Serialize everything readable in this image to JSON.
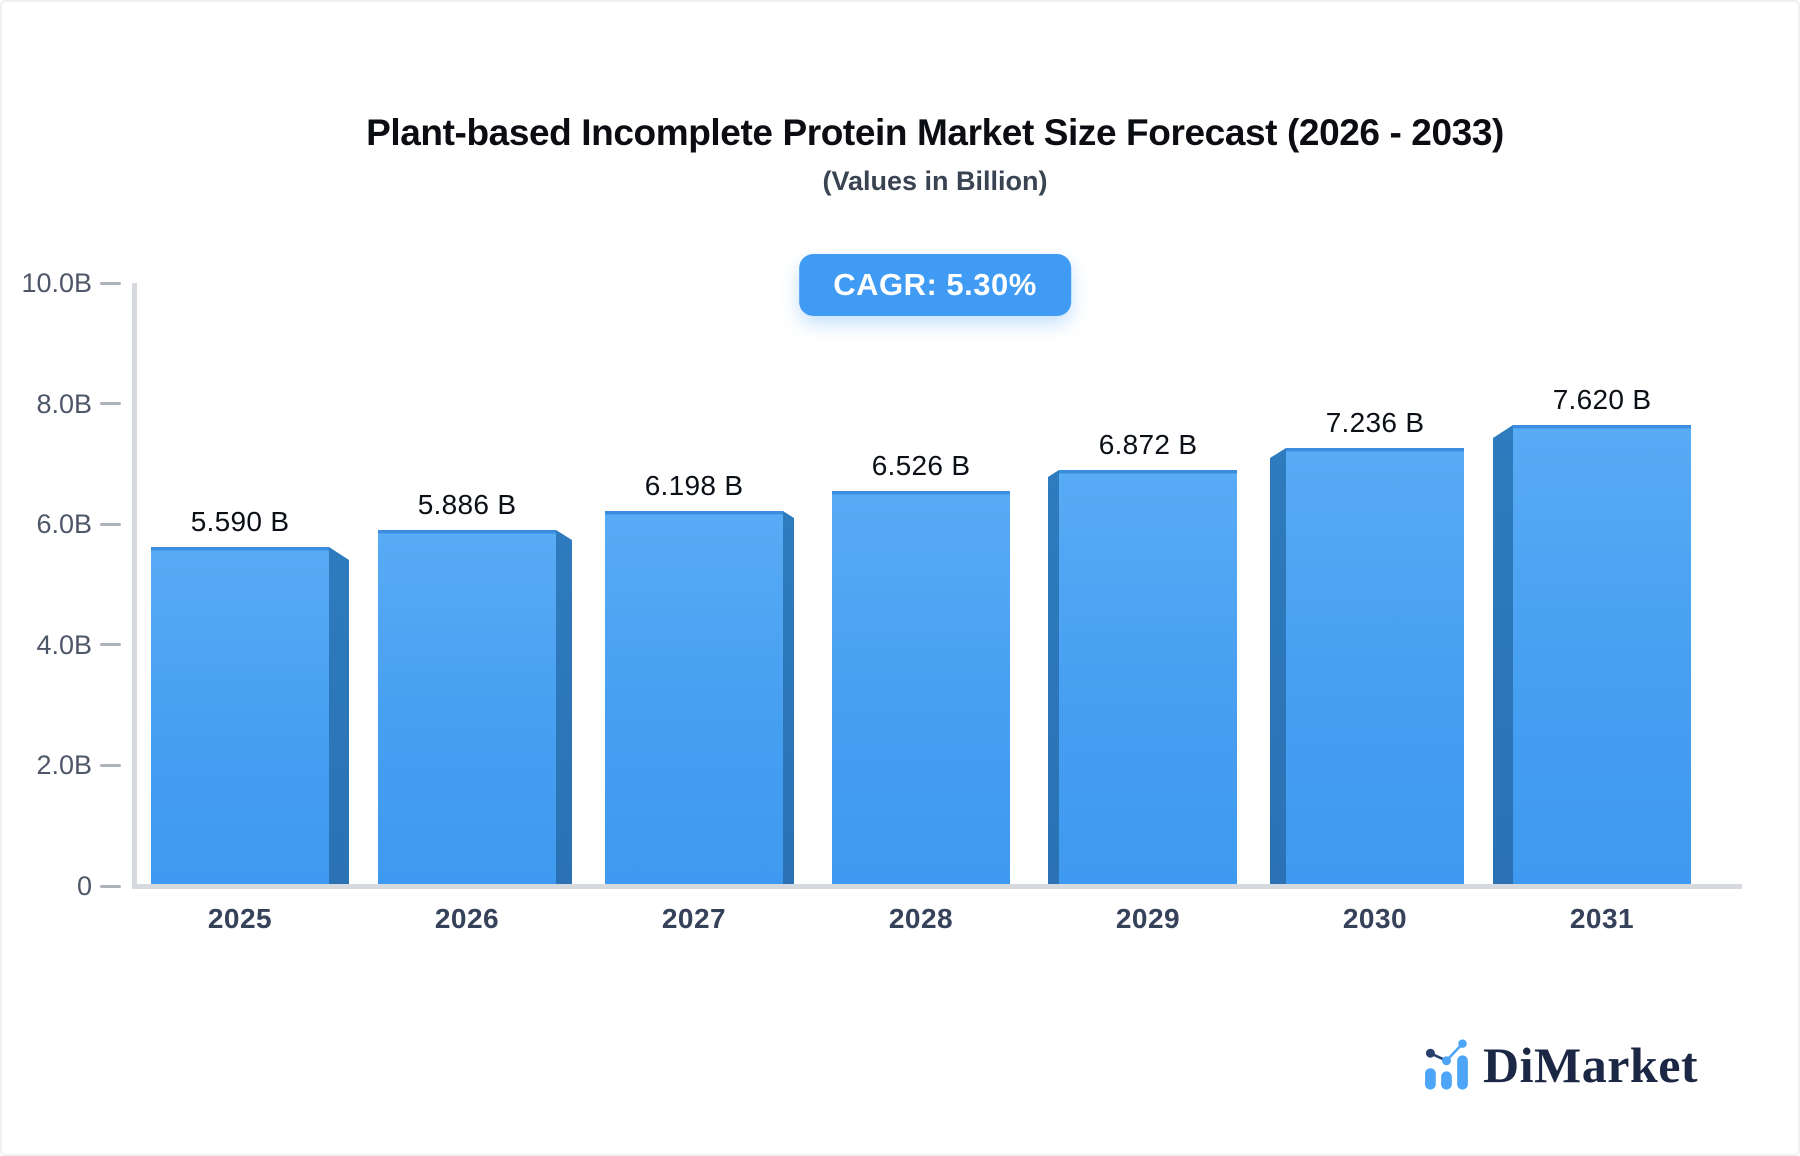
{
  "header": {
    "title": "Plant-based Incomplete Protein Market Size Forecast (2026 - 2033)",
    "subtitle": "(Values in Billion)"
  },
  "badge": {
    "label": "CAGR: 5.30%"
  },
  "chart_data": {
    "type": "bar",
    "categories": [
      "2025",
      "2026",
      "2027",
      "2028",
      "2029",
      "2030",
      "2031"
    ],
    "values": [
      5.59,
      5.886,
      6.198,
      6.526,
      6.872,
      7.236,
      7.62
    ],
    "value_labels": [
      "5.590 B",
      "5.886 B",
      "6.198 B",
      "6.526 B",
      "6.872 B",
      "7.236 B",
      "7.620 B"
    ],
    "title": "Plant-based Incomplete Protein Market Size Forecast (2026 - 2033)",
    "subtitle": "(Values in Billion)",
    "unit": "Billion",
    "xlabel": "",
    "ylabel": "",
    "ylim": [
      0,
      10
    ],
    "yticks": [
      {
        "value": 10,
        "label": "10.0B"
      },
      {
        "value": 8,
        "label": "8.0B"
      },
      {
        "value": 6,
        "label": "6.0B"
      },
      {
        "value": 4,
        "label": "4.0B"
      },
      {
        "value": 2,
        "label": "2.0B"
      },
      {
        "value": 0,
        "label": "0"
      }
    ],
    "grid": "off",
    "legend": "none",
    "bar_style": "3d-perspective"
  },
  "logo": {
    "text": "DiMarket",
    "icon": "bar-chart-logo-icon"
  },
  "colors": {
    "badge_bg": "#3F9BF3",
    "bar_face_top_line": "#3B8EDD",
    "bar_face_light": "#58ABF5",
    "bar_face_mid": "#479FF1",
    "bar_face_deep": "#3E99F0",
    "bar_side": "#2E7BBE",
    "title": "#0B0D12",
    "subtitle": "#3A4352",
    "axis_label": "#4E5767",
    "x_label": "#36415A",
    "value_label": "#0B0F16",
    "axis_line": "#D6D9DE",
    "tick": "#ACB2BA",
    "logo_text": "#1B2744",
    "logo_blue": "#4CA5F7",
    "logo_dark": "#27406E",
    "background": "#FFFFFF"
  }
}
